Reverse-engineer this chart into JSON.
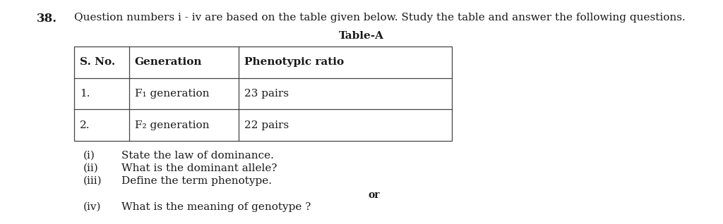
{
  "question_number": "38.",
  "question_text": "Question numbers i - iv are based on the table given below. Study the table and answer the following questions.",
  "table_title": "Table-A",
  "table_headers": [
    "S. No.",
    "Generation",
    "Phenotypic ratio"
  ],
  "table_rows": [
    [
      "1.",
      "F₁ generation",
      "23 pairs"
    ],
    [
      "2.",
      "F₂ generation",
      "22 pairs"
    ]
  ],
  "sub_questions": [
    [
      "(i)",
      "State the law of dominance."
    ],
    [
      "(ii)",
      "What is the dominant allele?"
    ],
    [
      "(iii)",
      "Define the term phenotype."
    ]
  ],
  "or_text": "or",
  "iv_question": [
    "(iv)",
    "What is the meaning of genotype ?"
  ],
  "bg_color": "#ffffff",
  "text_color": "#1a1a1a",
  "table_line_color": "#444444",
  "font_size_main": 11,
  "font_size_table_header": 11,
  "font_size_table_body": 11,
  "font_size_number": 12,
  "font_size_or": 10
}
